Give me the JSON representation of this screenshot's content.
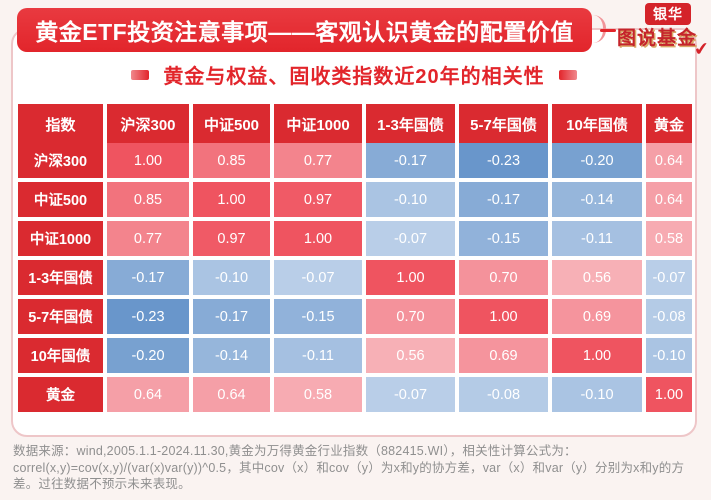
{
  "banner": {
    "title": "黄金ETF投资注意事项——客观认识黄金的配置价值"
  },
  "logo": {
    "name": "银华",
    "series": "图说基金",
    "check": "✔"
  },
  "subtitle": "黄金与权益、固收类指数近20年的相关性",
  "chart_data": {
    "type": "heatmap",
    "title": "黄金与权益、固收类指数近20年的相关性",
    "corner_label": "指数",
    "columns": [
      "沪深300",
      "中证500",
      "中证1000",
      "1-3年国债",
      "5-7年国债",
      "10年国债",
      "黄金"
    ],
    "rows": [
      "沪深300",
      "中证500",
      "中证1000",
      "1-3年国债",
      "5-7年国债",
      "10年国债",
      "黄金"
    ],
    "values": [
      [
        1.0,
        0.85,
        0.77,
        -0.17,
        -0.23,
        -0.2,
        0.64
      ],
      [
        0.85,
        1.0,
        0.97,
        -0.1,
        -0.17,
        -0.14,
        0.64
      ],
      [
        0.77,
        0.97,
        1.0,
        -0.07,
        -0.15,
        -0.11,
        0.58
      ],
      [
        -0.17,
        -0.1,
        -0.07,
        1.0,
        0.7,
        0.56,
        -0.07
      ],
      [
        -0.23,
        -0.17,
        -0.15,
        0.7,
        1.0,
        0.69,
        -0.08
      ],
      [
        -0.2,
        -0.14,
        -0.11,
        0.56,
        0.69,
        1.0,
        -0.1
      ],
      [
        0.64,
        0.64,
        0.58,
        -0.07,
        -0.08,
        -0.1,
        1.0
      ]
    ],
    "value_format": "2-decimals",
    "legend": "red = positive correlation, blue = negative correlation"
  },
  "colors": {
    "brand_red": "#e2252b",
    "table_header_red": "#da2a30",
    "heat_positive_low": "#f8bcc2",
    "heat_positive_high": "#ef5460",
    "heat_negative_low": "#c3d5ec",
    "heat_negative_high": "#5f8fc7",
    "panel_border": "#eec6c8",
    "page_bg": "#faf3f1",
    "footer_text": "#8f8f8f"
  },
  "footer": {
    "text": "数据来源：wind,2005.1.1-2024.11.30,黄金为万得黄金行业指数（882415.WI），相关性计算公式为：correl(x,y)=cov(x,y)/(var(x)var(y))^0.5，其中cov（x）和cov（y）为x和y的协方差，var（x）和var（y）分别为x和y的方差。过往数据不预示未来表现。"
  }
}
